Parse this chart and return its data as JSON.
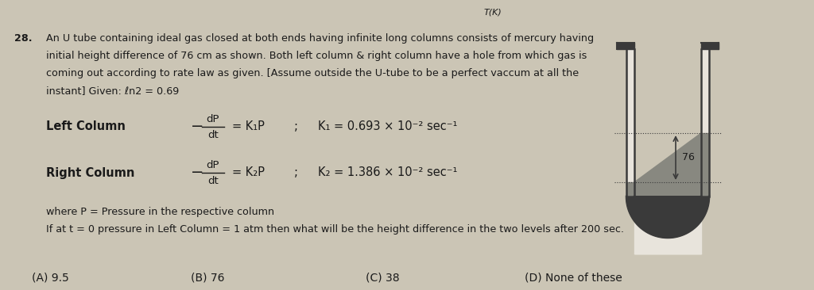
{
  "background_color": "#cbc5b5",
  "question_number": "28.",
  "q_line1": "An U tube containing ideal gas closed at both ends having infinite long columns consists of mercury having",
  "q_line2": "initial height difference of 76 cm as shown. Both left column & right column have a hole from which gas is",
  "q_line3": "coming out according to rate law as given. [Assume outside the U-tube to be a perfect vaccum at all the",
  "q_line4": "instant] Given: ℓn2 = 0.69",
  "T_label": "T(K)",
  "left_label": "Left Column",
  "right_label": "Right Column",
  "left_k": "K₁ = 0.693 × 10⁻² sec⁻¹",
  "right_k": "K₂ = 1.386 × 10⁻² sec⁻¹",
  "where_text": "where P = Pressure in the respective column",
  "if_text": "If at t = 0 pressure in Left Column = 1 atm then what will be the height difference in the two levels after 200 sec.",
  "opt_A": "(A) 9.5",
  "opt_B": "(B) 76",
  "opt_C": "(C) 38",
  "opt_D": "(D) None of these",
  "text_color": "#1a1a1a",
  "dark_gray": "#3a3a3a",
  "mercury_color": "#888880",
  "tube_fill": "#e8e4dc",
  "fs_body": 9.2,
  "fs_math": 10.5,
  "fs_options": 10.0
}
